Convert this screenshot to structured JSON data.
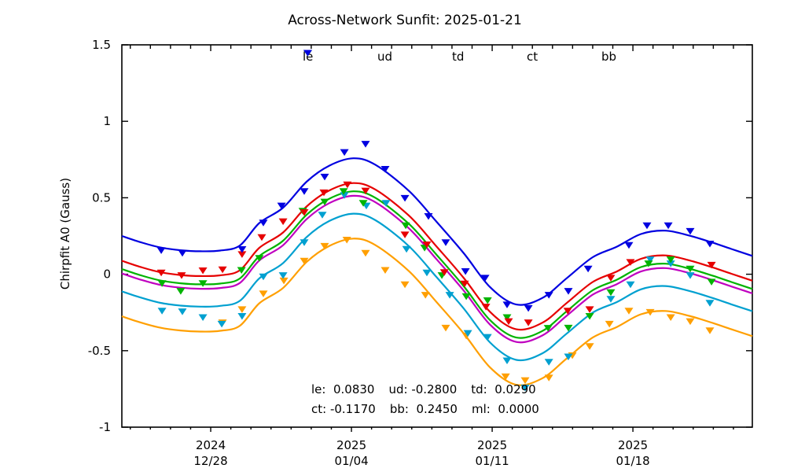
{
  "chart_data": {
    "type": "scatter+line",
    "title": "Across-Network Sunfit: 2025-01-21",
    "ylabel": "Chirpfit A0 (Gauss)",
    "xlabel": "",
    "ylim": [
      -1,
      1.5
    ],
    "x_unit": "days since 2024-12-28",
    "xlim": [
      -4.42,
      26.94
    ],
    "grid": false,
    "legend_position": "top-inside",
    "y_ticks": [
      {
        "v": -1,
        "label": "-1"
      },
      {
        "v": -0.5,
        "label": "-0.5"
      },
      {
        "v": 0,
        "label": "0"
      },
      {
        "v": 0.5,
        "label": "0.5"
      },
      {
        "v": 1,
        "label": "1"
      },
      {
        "v": 1.5,
        "label": "1.5"
      }
    ],
    "x_major_ticks": [
      {
        "day": 0,
        "line1": "2024",
        "line2": "12/28"
      },
      {
        "day": 7,
        "line1": "2025",
        "line2": "01/04"
      },
      {
        "day": 14,
        "line1": "2025",
        "line2": "01/11"
      },
      {
        "day": 21,
        "line1": "2025",
        "line2": "01/18"
      }
    ],
    "x_minor_tick_every_days": 1,
    "model_curve": {
      "name": "ml",
      "color": "#c000c0",
      "offset": 0.0,
      "base_points": [
        [
          -4.42,
          0.005
        ],
        [
          -3.5,
          -0.035
        ],
        [
          -2.5,
          -0.07
        ],
        [
          -1.5,
          -0.088
        ],
        [
          -0.5,
          -0.095
        ],
        [
          0.47,
          -0.09
        ],
        [
          1.45,
          -0.057
        ],
        [
          2.42,
          0.09
        ],
        [
          3.6,
          0.19
        ],
        [
          4.77,
          0.36
        ],
        [
          5.9,
          0.465
        ],
        [
          7.1,
          0.513
        ],
        [
          8.2,
          0.47
        ],
        [
          9.86,
          0.3
        ],
        [
          11.22,
          0.1
        ],
        [
          12.59,
          -0.108
        ],
        [
          13.9,
          -0.33
        ],
        [
          15.2,
          -0.443
        ],
        [
          16.5,
          -0.4
        ],
        [
          17.7,
          -0.272
        ],
        [
          19.0,
          -0.134
        ],
        [
          20.2,
          -0.065
        ],
        [
          21.4,
          0.018
        ],
        [
          22.6,
          0.04
        ],
        [
          23.8,
          0.008
        ],
        [
          25.0,
          -0.04
        ],
        [
          25.9,
          -0.08
        ],
        [
          26.94,
          -0.125
        ]
      ]
    },
    "series": [
      {
        "name": "le",
        "color": "#e60000",
        "offset": 0.083,
        "marker": "triangle-down",
        "points": [
          [
            -2.46,
            0.012
          ],
          [
            -1.45,
            -0.005
          ],
          [
            -0.39,
            0.026
          ],
          [
            0.59,
            0.033
          ],
          [
            1.56,
            0.132
          ],
          [
            2.54,
            0.244
          ],
          [
            3.6,
            0.347
          ],
          [
            4.65,
            0.407
          ],
          [
            5.63,
            0.536
          ],
          [
            6.8,
            0.588
          ],
          [
            7.7,
            0.548
          ],
          [
            9.66,
            0.261
          ],
          [
            10.75,
            0.196
          ],
          [
            11.62,
            0.015
          ],
          [
            12.63,
            -0.06
          ],
          [
            13.69,
            -0.211
          ],
          [
            14.82,
            -0.306
          ],
          [
            15.8,
            -0.314
          ],
          [
            17.76,
            -0.237
          ],
          [
            18.85,
            -0.228
          ],
          [
            19.9,
            -0.022
          ],
          [
            20.88,
            0.081
          ],
          [
            24.91,
            0.063
          ]
        ]
      },
      {
        "name": "ud",
        "color": "#ff9f00",
        "offset": -0.28,
        "marker": "triangle-down",
        "points": [
          [
            0.59,
            -0.314
          ],
          [
            1.56,
            -0.228
          ],
          [
            2.62,
            -0.125
          ],
          [
            3.64,
            -0.04
          ],
          [
            4.65,
            0.089
          ],
          [
            5.67,
            0.186
          ],
          [
            6.77,
            0.227
          ],
          [
            7.7,
            0.141
          ],
          [
            8.68,
            0.029
          ],
          [
            9.66,
            -0.065
          ],
          [
            10.68,
            -0.134
          ],
          [
            11.69,
            -0.349
          ],
          [
            12.71,
            -0.4
          ],
          [
            14.67,
            -0.667
          ],
          [
            15.64,
            -0.692
          ],
          [
            16.82,
            -0.675
          ],
          [
            17.99,
            -0.529
          ],
          [
            18.85,
            -0.469
          ],
          [
            19.83,
            -0.323
          ],
          [
            20.8,
            -0.237
          ],
          [
            21.86,
            -0.246
          ],
          [
            22.88,
            -0.28
          ],
          [
            23.85,
            -0.306
          ],
          [
            24.83,
            -0.366
          ]
        ]
      },
      {
        "name": "td",
        "color": "#00b400",
        "offset": 0.029,
        "marker": "triangle-down",
        "points": [
          [
            -2.42,
            -0.057
          ],
          [
            -1.49,
            -0.108
          ],
          [
            -0.39,
            -0.057
          ],
          [
            1.53,
            0.029
          ],
          [
            2.42,
            0.107
          ],
          [
            4.58,
            0.416
          ],
          [
            5.67,
            0.476
          ],
          [
            6.61,
            0.545
          ],
          [
            7.59,
            0.467
          ],
          [
            9.7,
            0.321
          ],
          [
            10.64,
            0.175
          ],
          [
            11.5,
            -0.005
          ],
          [
            12.71,
            -0.143
          ],
          [
            13.77,
            -0.169
          ],
          [
            14.74,
            -0.28
          ],
          [
            16.78,
            -0.35
          ],
          [
            17.79,
            -0.349
          ],
          [
            18.85,
            -0.272
          ],
          [
            19.9,
            -0.117
          ],
          [
            21.78,
            0.072
          ],
          [
            22.88,
            0.098
          ],
          [
            23.85,
            0.038
          ],
          [
            24.91,
            -0.048
          ]
        ]
      },
      {
        "name": "ct",
        "color": "#00a0d0",
        "offset": -0.117,
        "marker": "triangle-down",
        "points": [
          [
            -2.42,
            -0.237
          ],
          [
            -1.41,
            -0.242
          ],
          [
            -0.39,
            -0.28
          ],
          [
            0.55,
            -0.323
          ],
          [
            1.56,
            -0.272
          ],
          [
            2.62,
            -0.014
          ],
          [
            3.6,
            -0.005
          ],
          [
            4.65,
            0.21
          ],
          [
            5.55,
            0.39
          ],
          [
            6.65,
            0.519
          ],
          [
            7.74,
            0.45
          ],
          [
            8.72,
            0.467
          ],
          [
            9.74,
            0.166
          ],
          [
            10.75,
            0.012
          ],
          [
            11.89,
            -0.134
          ],
          [
            12.79,
            -0.383
          ],
          [
            13.77,
            -0.409
          ],
          [
            14.74,
            -0.563
          ],
          [
            15.64,
            -0.74
          ],
          [
            16.82,
            -0.572
          ],
          [
            17.79,
            -0.537
          ],
          [
            19.9,
            -0.16
          ],
          [
            20.88,
            -0.065
          ],
          [
            21.86,
            0.098
          ],
          [
            22.88,
            0.072
          ],
          [
            23.85,
            -0.005
          ],
          [
            24.83,
            -0.186
          ]
        ]
      },
      {
        "name": "bb",
        "color": "#0000e0",
        "offset": 0.245,
        "marker": "triangle-down",
        "points": [
          [
            -2.46,
            0.158
          ],
          [
            -1.41,
            0.141
          ],
          [
            1.56,
            0.165
          ],
          [
            2.62,
            0.339
          ],
          [
            3.52,
            0.45
          ],
          [
            4.65,
            0.545
          ],
          [
            5.67,
            0.639
          ],
          [
            6.65,
            0.8
          ],
          [
            7.7,
            0.854
          ],
          [
            8.68,
            0.69
          ],
          [
            9.66,
            0.5
          ],
          [
            10.83,
            0.381
          ],
          [
            11.69,
            0.21
          ],
          [
            12.67,
            0.021
          ],
          [
            13.65,
            -0.022
          ],
          [
            14.74,
            -0.197
          ],
          [
            15.8,
            -0.22
          ],
          [
            16.82,
            -0.134
          ],
          [
            17.79,
            -0.108
          ],
          [
            18.77,
            0.038
          ],
          [
            20.8,
            0.192
          ],
          [
            21.7,
            0.321
          ],
          [
            22.76,
            0.321
          ],
          [
            23.85,
            0.284
          ],
          [
            24.83,
            0.201
          ]
        ]
      }
    ],
    "legend_entries": [
      {
        "label": "le",
        "color": "#e60000"
      },
      {
        "label": "ud",
        "color": "#ff9f00"
      },
      {
        "label": "td",
        "color": "#00b400"
      },
      {
        "label": "ct",
        "color": "#00a0d0"
      },
      {
        "label": "bb",
        "color": "#0000e0"
      }
    ],
    "fit_values": [
      {
        "label": "le",
        "value": "0.0830"
      },
      {
        "label": "ud",
        "value": "-0.2800"
      },
      {
        "label": "td",
        "value": "0.0290"
      },
      {
        "label": "ct",
        "value": "-0.1170"
      },
      {
        "label": "bb",
        "value": "0.2450"
      },
      {
        "label": "ml",
        "value": "0.0000"
      }
    ],
    "fit_annotation_rows": [
      [
        "le:  0.0830",
        "ud: -0.2800",
        "td:  0.0290"
      ],
      [
        "ct: -0.1170",
        "bb:  0.2450",
        "ml:  0.0000"
      ]
    ]
  }
}
